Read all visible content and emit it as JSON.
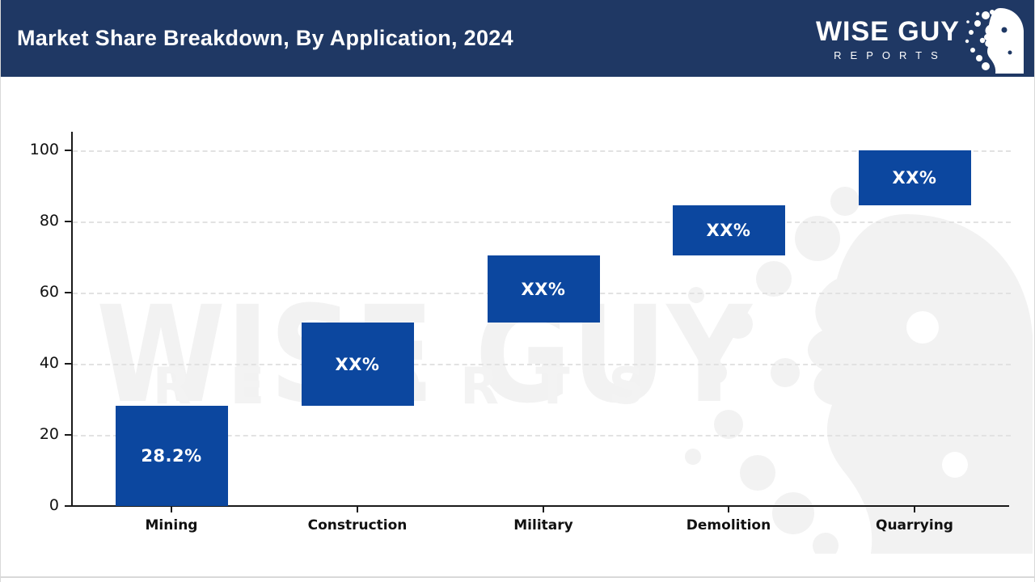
{
  "header": {
    "title": "Market Share Breakdown, By Application, 2024",
    "logo": {
      "name": "WISE GUY",
      "sub": "REPORTS"
    }
  },
  "watermark": {
    "line1": "WISE GUY",
    "line2": "REPORTS"
  },
  "chart_data": {
    "type": "bar",
    "subtype": "waterfall",
    "title": "Market Share Breakdown, By Application, 2024",
    "categories": [
      "Mining",
      "Construction",
      "Military",
      "Demolition",
      "Quarrying"
    ],
    "segments": [
      {
        "category": "Mining",
        "start": 0,
        "end": 28.2,
        "label": "28.2%"
      },
      {
        "category": "Construction",
        "start": 28.2,
        "end": 51.5,
        "label": "XX%"
      },
      {
        "category": "Military",
        "start": 51.5,
        "end": 70.5,
        "label": "XX%"
      },
      {
        "category": "Demolition",
        "start": 70.5,
        "end": 84.5,
        "label": "XX%"
      },
      {
        "category": "Quarrying",
        "start": 84.5,
        "end": 100,
        "label": "XX%"
      }
    ],
    "xlabel": "",
    "ylabel": "",
    "ylim": [
      0,
      100
    ],
    "yticks": [
      0,
      20,
      40,
      60,
      80,
      100
    ],
    "grid": "dashed-horizontal",
    "legend": "none",
    "bar_color": "#0c479f",
    "bar_label_color": "#ffffff"
  },
  "colors": {
    "header_bg": "#1f3864",
    "bar": "#0c479f",
    "grid": "#e2e2e2",
    "axis": "#1a1a1a",
    "watermark": "#f2f2f2"
  }
}
